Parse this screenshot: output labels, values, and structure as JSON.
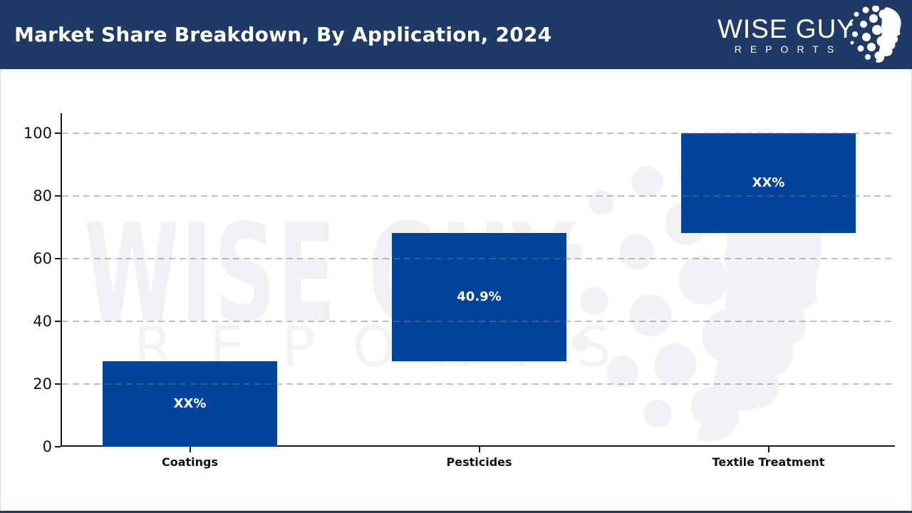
{
  "branding": {
    "wordmark": "WISE GUY",
    "subtext": "REPORTS"
  },
  "watermark": {
    "wordmark": "WISE GUY",
    "subtext": "REPORTS"
  },
  "colors": {
    "header_bg": "#203a67",
    "footer_bg": "#203a67",
    "bar": "#04439c",
    "bar_label": "#ffffff",
    "axis": "#1a1a1a",
    "tick_text": "#111111",
    "gridline": "#787878",
    "watermark": "#f0f1f4",
    "edge_border": "#d9d9d9",
    "title_text": "#ffffff"
  },
  "chart_data": {
    "type": "bar",
    "subtype": "floating-waterfall-columns",
    "title": "Market Share Breakdown, By Application, 2024",
    "categories": [
      "Coatings",
      "Pesticides",
      "Textile Treatment"
    ],
    "bars": [
      {
        "category": "Coatings",
        "start": 0,
        "end": 27.3,
        "label": "XX%"
      },
      {
        "category": "Pesticides",
        "start": 27.3,
        "end": 68.2,
        "label": "40.9%"
      },
      {
        "category": "Textile Treatment",
        "start": 68.2,
        "end": 100,
        "label": "XX%"
      }
    ],
    "xlabel": "",
    "ylabel": "",
    "ylim": [
      0,
      106
    ],
    "yticks": [
      0,
      20,
      40,
      60,
      80,
      100
    ],
    "grid": "horizontal-dashed",
    "gridline_over_bars": true,
    "legend": "none"
  }
}
